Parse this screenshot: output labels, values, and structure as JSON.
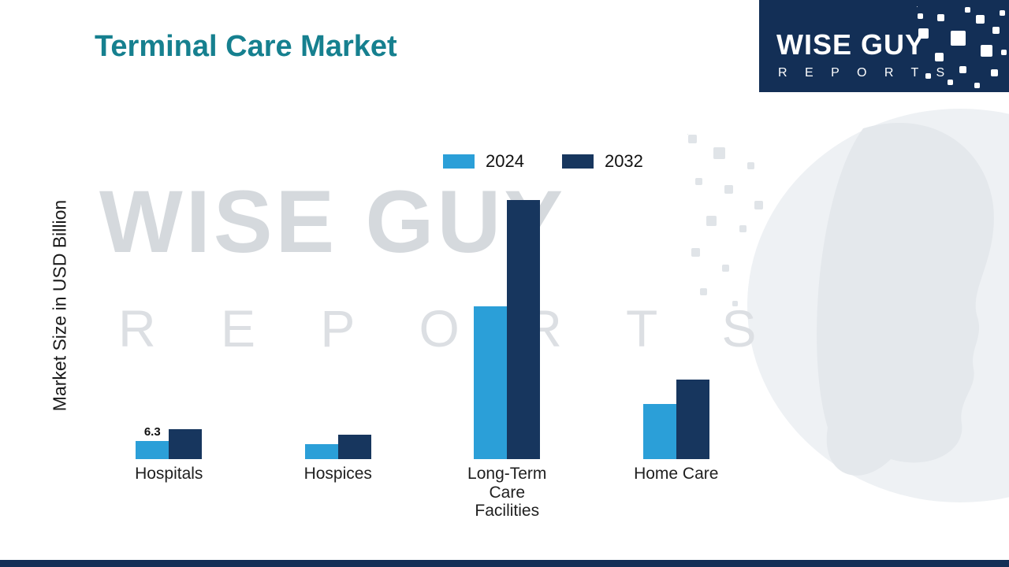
{
  "header": {
    "title": "Terminal Care Market"
  },
  "logo": {
    "line1": "WISE GUY",
    "line2": "R E P O R T S"
  },
  "watermark": {
    "line1": "WISE GUY",
    "line2": "R E P O R T S"
  },
  "colors": {
    "title": "#16808F",
    "accent_light_blue": "#2B9FD8",
    "accent_navy": "#17365E",
    "logo_background": "#132F56",
    "bottom_bar": "#132F56",
    "circle_gray": "#EEF1F4",
    "watermark_gray": "#D5D9DD"
  },
  "chart_data": {
    "type": "bar",
    "title": "Terminal Care Market",
    "xlabel": "",
    "ylabel": "Market Size in USD Billion",
    "ylim": [
      0,
      100
    ],
    "grid": false,
    "legend_position": "top",
    "categories": [
      "Hospitals",
      "Hospices",
      "Long-Term Care Facilities",
      "Home Care"
    ],
    "series": [
      {
        "name": "2024",
        "color": "#2B9FD8",
        "values": [
          6.3,
          5.2,
          53,
          19
        ],
        "labels": [
          "6.3",
          "",
          "",
          ""
        ]
      },
      {
        "name": "2032",
        "color": "#17365E",
        "values": [
          10.5,
          8.5,
          90,
          27.5
        ],
        "labels": [
          "",
          "",
          "",
          ""
        ]
      }
    ]
  }
}
